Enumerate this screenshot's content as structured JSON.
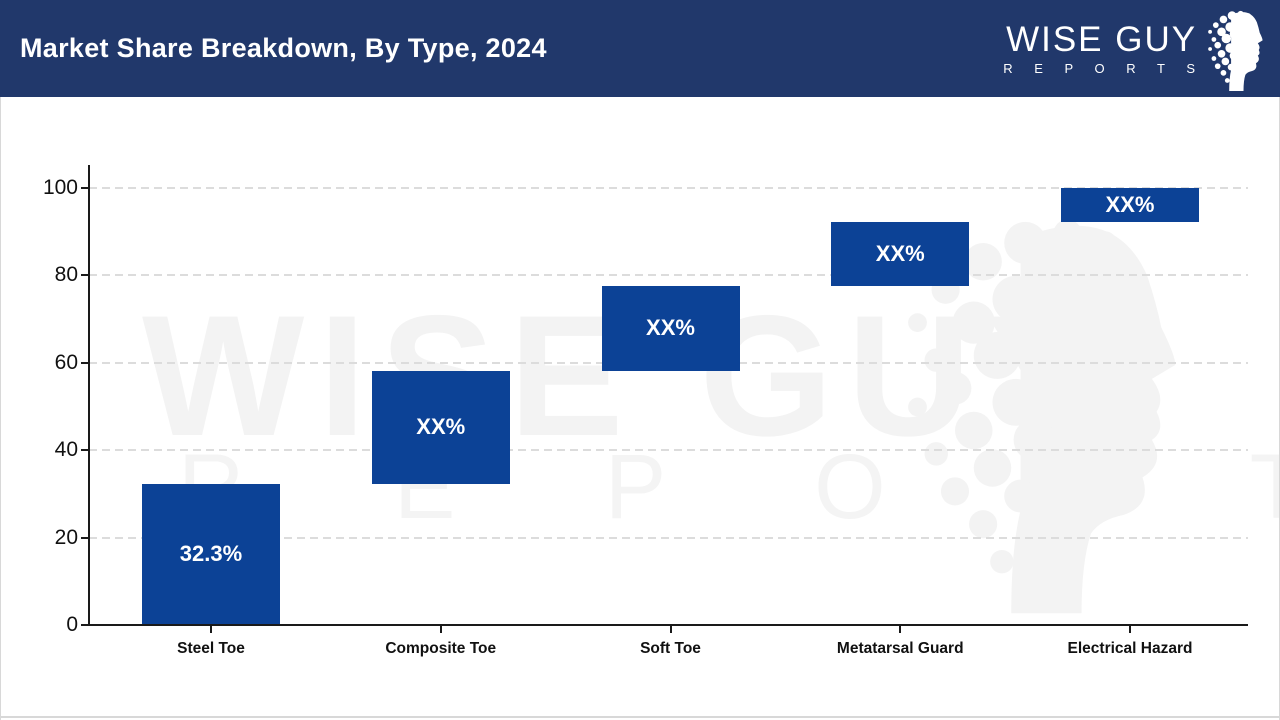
{
  "header": {
    "title": "Market Share Breakdown, By Type, 2024",
    "brand": {
      "line1": "WISE GUY",
      "line2": "R E P O R T S"
    }
  },
  "watermark": {
    "line1": "WISE GUY",
    "line2": "R E P O R T S"
  },
  "colors": {
    "header_bg": "#21386b",
    "bar": "#0c4296",
    "axis": "#1a1a1a",
    "grid": "#dcdcdc",
    "tick_text": "#111111",
    "bar_label_text": "#ffffff",
    "watermark": "#f3f3f3"
  },
  "chart_data": {
    "type": "bar",
    "subtype": "waterfall-floating-bars",
    "title": "Market Share Breakdown, By Type, 2024",
    "xlabel": "",
    "ylabel": "",
    "ylim": [
      0,
      100
    ],
    "yticks": [
      0,
      20,
      40,
      60,
      80,
      100
    ],
    "grid": "horizontal-dashed",
    "legend": "none",
    "categories": [
      "Steel Toe",
      "Composite Toe",
      "Soft Toe",
      "Metatarsal Guard",
      "Electrical Hazard"
    ],
    "segments": [
      {
        "start": 0,
        "end": 32.3,
        "size": 32.3,
        "label": "32.3%"
      },
      {
        "start": 32.3,
        "end": 58.1,
        "size": 25.8,
        "label": "XX%"
      },
      {
        "start": 58.1,
        "end": 77.5,
        "size": 19.4,
        "label": "XX%"
      },
      {
        "start": 77.5,
        "end": 92.2,
        "size": 14.7,
        "label": "XX%"
      },
      {
        "start": 92.2,
        "end": 100,
        "size": 7.8,
        "label": "XX%"
      }
    ]
  }
}
